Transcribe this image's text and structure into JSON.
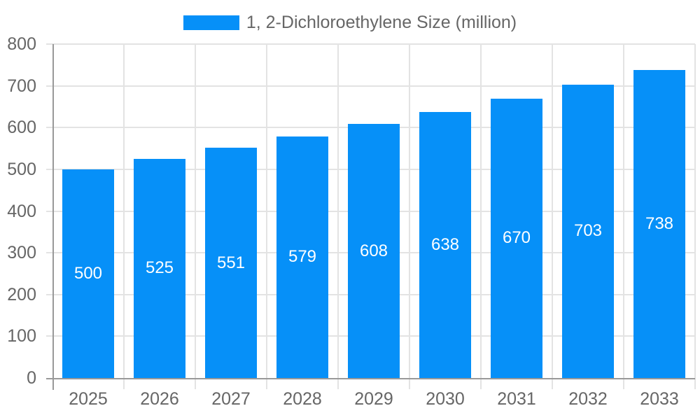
{
  "chart_data": {
    "type": "bar",
    "title": "1, 2-Dichloroethylene Size (million)",
    "legend": {
      "label": "1, 2-Dichloroethylene Size (million)",
      "position": "top"
    },
    "categories": [
      "2025",
      "2026",
      "2027",
      "2028",
      "2029",
      "2030",
      "2031",
      "2032",
      "2033"
    ],
    "values": [
      500,
      525,
      551,
      579,
      608,
      638,
      670,
      703,
      738
    ],
    "xlabel": "",
    "ylabel": "",
    "ylim": [
      0,
      800
    ],
    "yticks": [
      0,
      100,
      200,
      300,
      400,
      500,
      600,
      700,
      800
    ],
    "grid": true,
    "bar_labels_inside": true,
    "colors": {
      "bar": "#0690f8",
      "axis_text": "#666666",
      "grid_line": "#e3e3e3",
      "axis_line": "#999999",
      "value_text": "#ffffff"
    }
  }
}
